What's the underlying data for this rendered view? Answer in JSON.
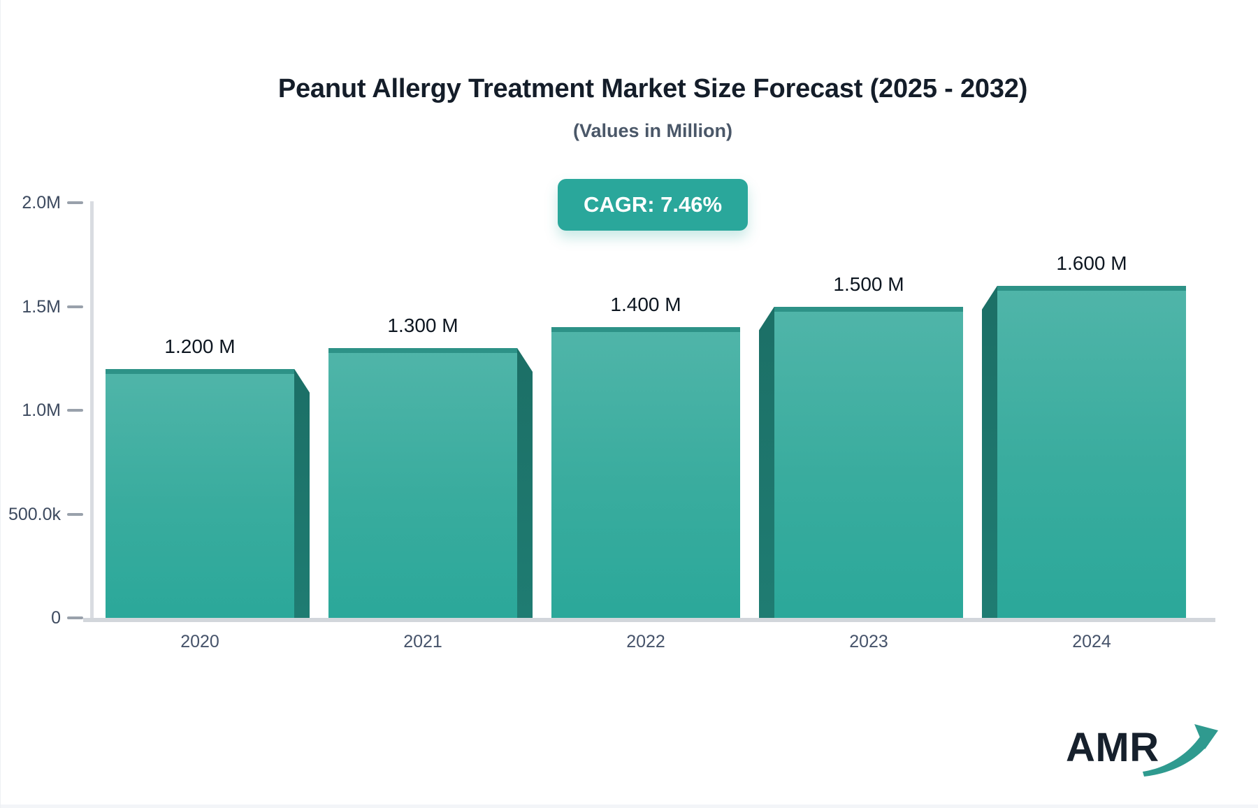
{
  "header": {
    "title": "Peanut Allergy Treatment Market Size Forecast (2025 - 2032)",
    "subtitle": "(Values in Million)"
  },
  "badge": {
    "label": "CAGR: 7.46%"
  },
  "chart_data": {
    "type": "bar",
    "title": "Peanut Allergy Treatment Market Size Forecast (2025 - 2032)",
    "subtitle": "(Values in Million)",
    "cagr_label": "CAGR: 7.46%",
    "categories": [
      "2020",
      "2021",
      "2022",
      "2023",
      "2024"
    ],
    "values": [
      1200000,
      1300000,
      1400000,
      1500000,
      1600000
    ],
    "value_labels": [
      "1.200 M",
      "1.300 M",
      "1.400 M",
      "1.500 M",
      "1.600 M"
    ],
    "xlabel": "",
    "ylabel": "",
    "ylim": [
      0,
      2000000
    ],
    "y_ticks": {
      "labels": [
        "2.0M",
        "1.5M",
        "1.0M",
        "500.0k",
        "0"
      ],
      "values": [
        2000000,
        1500000,
        1000000,
        500000,
        0
      ]
    },
    "grid": false,
    "legend": "none",
    "bar_3d_depth_side": [
      "right",
      "right",
      "none",
      "left",
      "left"
    ]
  },
  "logo": {
    "text": "AMR"
  },
  "colors": {
    "accent": "#2aa79b",
    "bar_gradient_top": "#50b5a9",
    "bar_gradient_bottom": "#2ba89a",
    "bar_cap": "#2d9287",
    "bar_side": "#1f7c72",
    "axis_line": "#d5d8dd",
    "tick_mark": "#99a1ab",
    "tick_text": "#3d4a5f",
    "value_text": "#0d1620",
    "title_text": "#141d29",
    "subtitle_text": "#4a5768",
    "logo_text": "#16202c",
    "logo_arrow": "#2f9a8f"
  }
}
